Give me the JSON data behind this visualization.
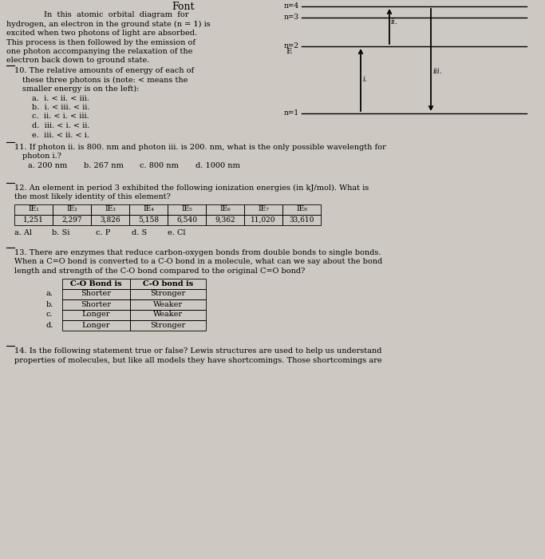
{
  "bg_color": "#cdc8c2",
  "text_color": "#000000",
  "title": "Font",
  "q12_headers": [
    "IE₁",
    "IE₂",
    "IE₃",
    "IE₄",
    "IE₅",
    "IE₆",
    "IE₇",
    "IE₈"
  ],
  "q12_values": [
    "1,251",
    "2,297",
    "3,826",
    "5,158",
    "6,540",
    "9,362",
    "11,020",
    "33,610"
  ],
  "q13_col1_header": "C-O Bond is",
  "q13_col2_header": "C-O bond is",
  "q13_rows": [
    [
      "Shorter",
      "Stronger"
    ],
    [
      "Shorter",
      "Weaker"
    ],
    [
      "Longer",
      "Weaker"
    ],
    [
      "Longer",
      "Stronger"
    ]
  ],
  "q13_row_labels": [
    "a.",
    "b.",
    "c.",
    "d."
  ],
  "font_size_title": 9,
  "font_size_body": 7.0,
  "font_size_small": 6.5,
  "font_size_diagram": 6.5
}
